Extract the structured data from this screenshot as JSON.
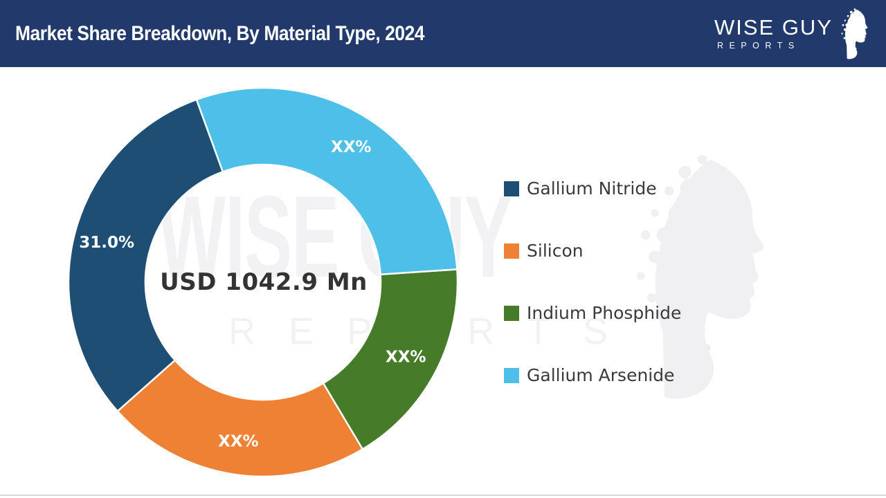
{
  "header": {
    "title": "Market Share Breakdown, By Material Type, 2024",
    "logo": {
      "name": "WISE GUY",
      "subname": "REPORTS",
      "face_icon": "face-profile-dots-icon"
    }
  },
  "chart_data": {
    "type": "pie",
    "subtype": "donut",
    "title": "Market Share Breakdown, By Material Type, 2024",
    "center_label": "USD 1042.9 Mn",
    "categories": [
      "Gallium Nitride",
      "Silicon",
      "Indium Phosphide",
      "Gallium Arsenide"
    ],
    "values_pct_estimated": [
      31.0,
      22.0,
      17.5,
      29.5
    ],
    "slice_labels": [
      "31.0%",
      "XX%",
      "XX%",
      "XX%"
    ],
    "colors": [
      "#1F4E74",
      "#EE8133",
      "#457B29",
      "#4DBFE8"
    ],
    "start_angle_deg": 110,
    "direction": "counterclockwise",
    "inner_radius_ratio": 0.605,
    "legend_position": "right",
    "grid": false
  },
  "watermark": {
    "line1": "WISE GUY",
    "line2": "REPORTS"
  },
  "footer": {
    "divider_color": "#D9D9D9"
  }
}
